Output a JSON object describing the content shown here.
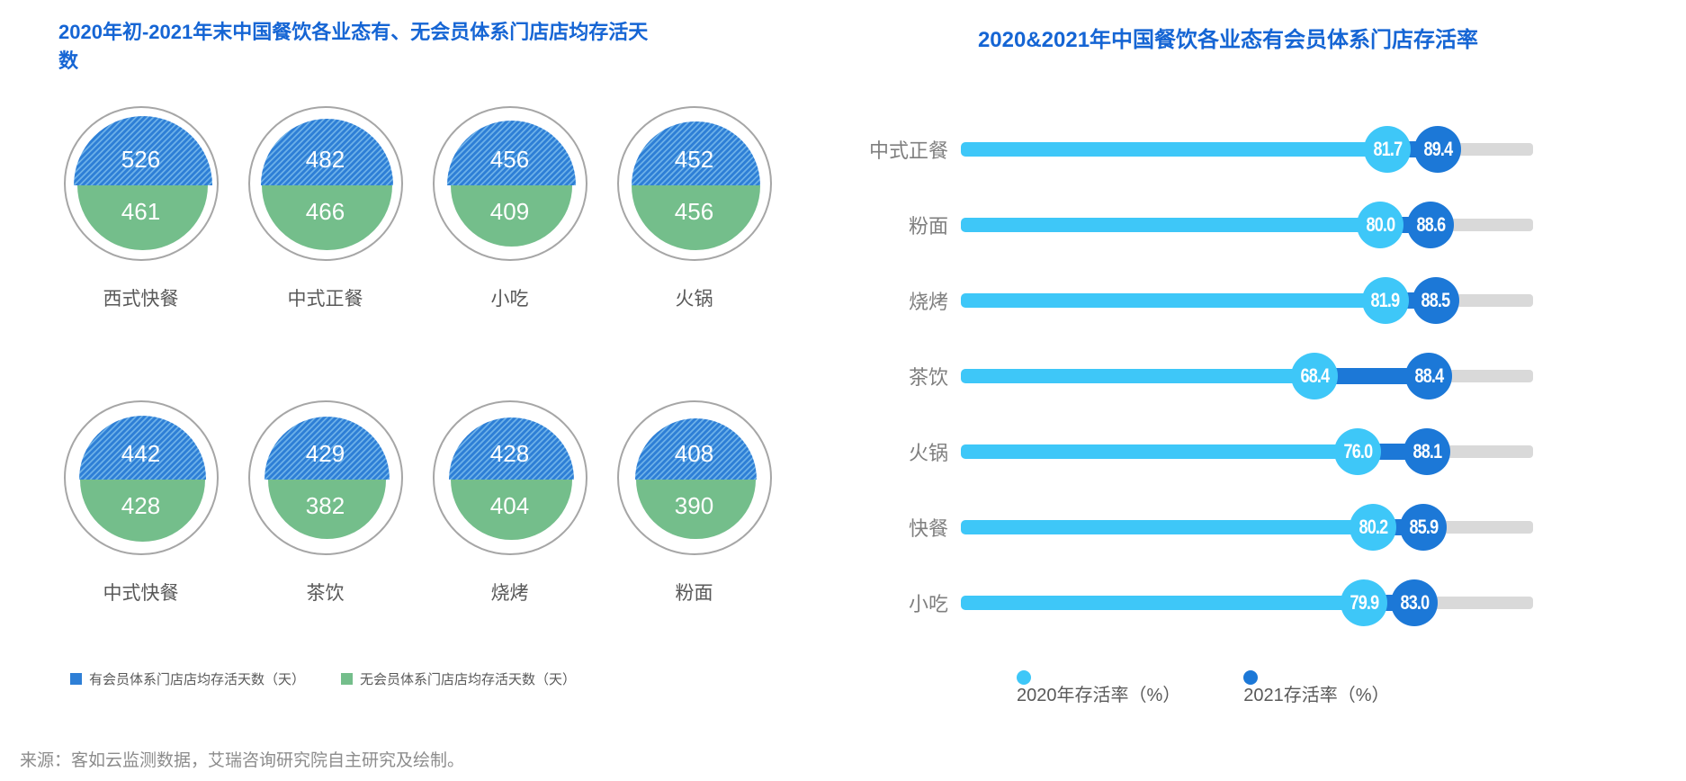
{
  "page": {
    "source_note": "来源：客如云监测数据，艾瑞咨询研究院自主研究及绘制。"
  },
  "colors": {
    "title_blue": "#1565D4",
    "member_days_blue": "#2E7FD6",
    "member_days_blue_stripe": "#6CB0E8",
    "non_member_days_green": "#74BE8B",
    "rate_2020_light_blue": "#3EC7F8",
    "rate_2021_dark_blue": "#1C78D7",
    "remaining_track_gray": "#D9D9D9",
    "circle_ring_gray": "#A6A6A6"
  },
  "chart_data": [
    {
      "type": "bar",
      "variant": "half-circle-pair",
      "title": "2020年初-2021年末中国餐饮各业态有、无会员体系门店店均存活天数",
      "unit": "天",
      "categories": [
        "西式快餐",
        "中式正餐",
        "小吃",
        "火锅",
        "中式快餐",
        "茶饮",
        "烧烤",
        "粉面"
      ],
      "series": [
        {
          "name": "有会员体系门店店均存活天数（天）",
          "color": "#2E7FD6",
          "values": [
            526,
            482,
            456,
            452,
            442,
            429,
            428,
            408
          ]
        },
        {
          "name": "无会员体系门店店均存活天数（天）",
          "color": "#74BE8B",
          "values": [
            461,
            466,
            409,
            456,
            428,
            382,
            404,
            390
          ]
        }
      ],
      "max_value_for_scale": 526,
      "legend_position": "bottom"
    },
    {
      "type": "bar",
      "variant": "dumbbell-progress",
      "title": "2020&2021年中国餐饮各业态有会员体系门店存活率",
      "unit": "%",
      "categories": [
        "中式正餐",
        "粉面",
        "烧烤",
        "茶饮",
        "火锅",
        "快餐",
        "小吃"
      ],
      "series": [
        {
          "name": "2020年存活率（%）",
          "color": "#3EC7F8",
          "values": [
            81.7,
            80.0,
            81.9,
            68.4,
            76.0,
            80.2,
            79.9
          ]
        },
        {
          "name": "2021存活率（%）",
          "color": "#1C78D7",
          "values": [
            89.4,
            88.6,
            88.5,
            88.4,
            88.1,
            85.9,
            83.0
          ]
        }
      ],
      "axis_range": [
        0,
        100
      ],
      "legend_position": "bottom"
    }
  ]
}
